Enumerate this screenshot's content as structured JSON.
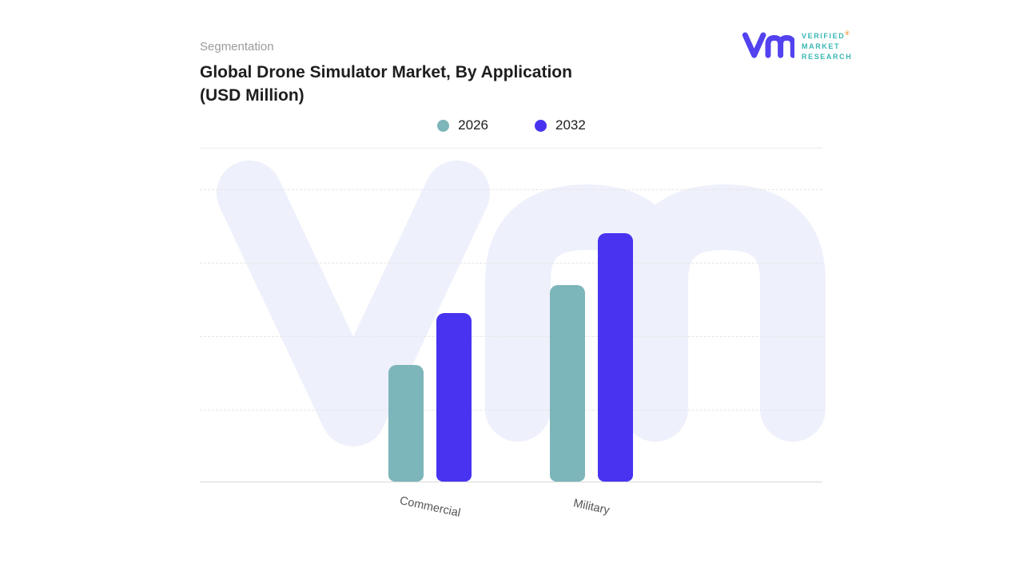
{
  "header": {
    "eyebrow": "Segmentation",
    "title_line1": "Global Drone Simulator Market, By Application",
    "title_line2": "(USD Million)"
  },
  "logo": {
    "brand_line1": "VERIFIED",
    "brand_line2": "MARKET",
    "brand_line3": "RESEARCH",
    "registered_mark": "®",
    "mark_color": "#5242ef",
    "text_color": "#38b7b3",
    "registered_color": "#f08c2a"
  },
  "legend": [
    {
      "label": "2026",
      "color": "#7cb5ba"
    },
    {
      "label": "2032",
      "color": "#4733f0"
    }
  ],
  "chart_data": {
    "type": "bar",
    "title": "Global Drone Simulator Market, By Application (USD Million)",
    "categories": [
      "Commercial",
      "Military"
    ],
    "series": [
      {
        "name": "2026",
        "color": "#7cb5ba",
        "values": [
          47,
          79
        ]
      },
      {
        "name": "2032",
        "color": "#4733f0",
        "values": [
          68,
          100
        ]
      }
    ],
    "xlabel": "",
    "ylabel": "USD Million (axis values not shown)",
    "ylim": [
      0,
      135
    ],
    "grid": "horizontal-dashed",
    "legend_position": "top-center",
    "value_labels_visible": false,
    "watermark_color": "#eef0fb",
    "baseline_color": "#d8d8d8"
  }
}
